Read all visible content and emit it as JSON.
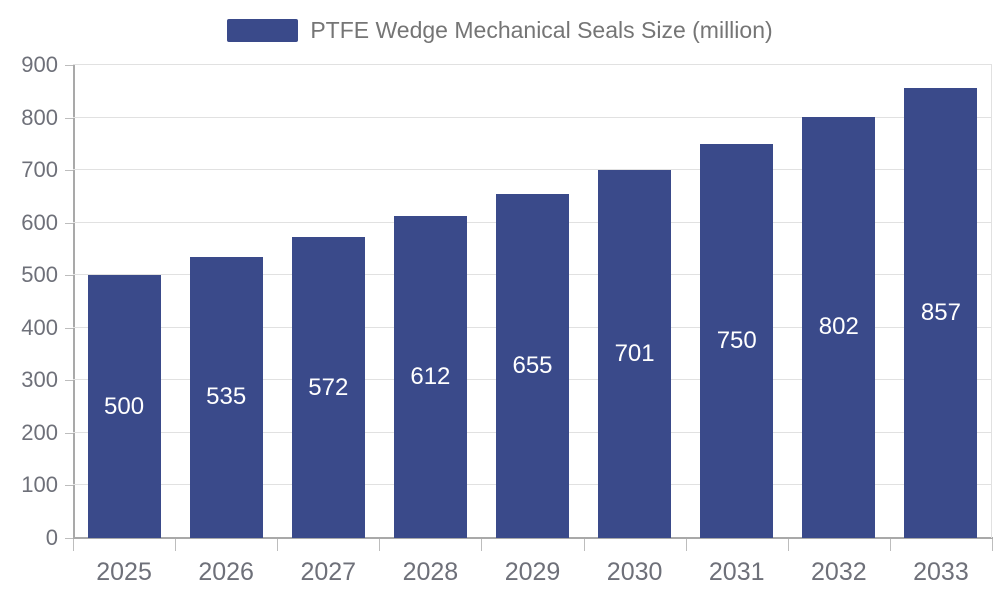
{
  "legend": {
    "label": "PTFE Wedge Mechanical Seals Size (million)"
  },
  "chart_data": {
    "type": "bar",
    "title": "PTFE Wedge Mechanical Seals Size (million)",
    "categories": [
      "2025",
      "2026",
      "2027",
      "2028",
      "2029",
      "2030",
      "2031",
      "2032",
      "2033"
    ],
    "series": [
      {
        "name": "PTFE Wedge Mechanical Seals Size (million)",
        "values": [
          500,
          535,
          572,
          612,
          655,
          701,
          750,
          802,
          857
        ]
      }
    ],
    "value_labels_shown": true,
    "value_label_position": "inside-center",
    "xlabel": "",
    "ylabel": "",
    "ylim": [
      0,
      900
    ],
    "y_tick_step": 100,
    "grid": true,
    "legend_position": "top-center",
    "colors": {
      "bar": "#3a4a8a",
      "value_label": "#ffffff",
      "axis_line": "#a9a9a9",
      "gridline": "#e1e1e1",
      "axis_text": "#6e7079",
      "title_text": "#757575",
      "background": "#ffffff"
    }
  }
}
